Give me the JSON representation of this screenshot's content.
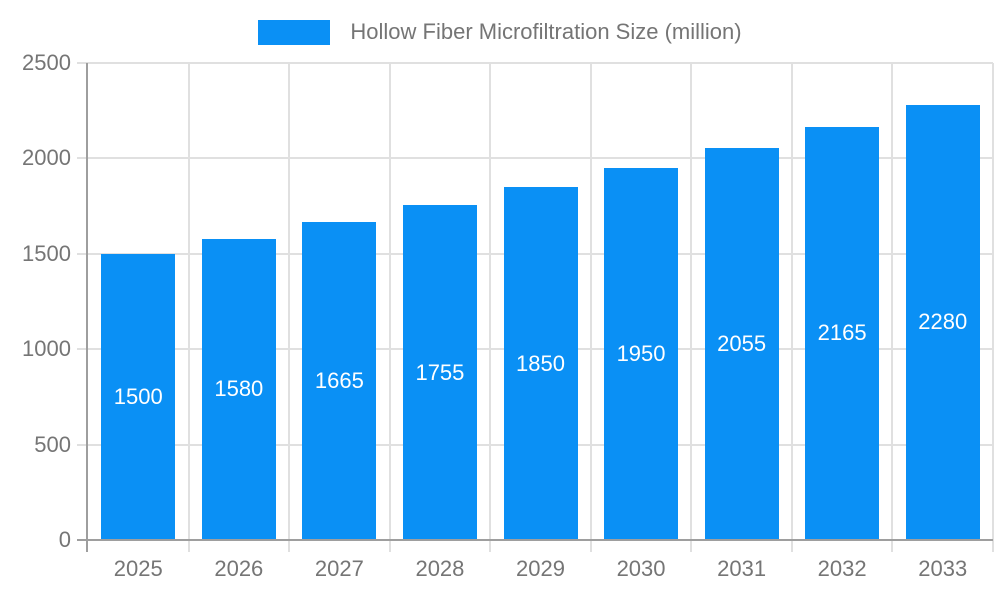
{
  "legend": {
    "label": "Hollow Fiber Microfiltration Size (million)"
  },
  "colors": {
    "bar": "#0a90f5",
    "grid": "#e0e0e0",
    "axis": "#9e9e9e",
    "axis_text": "#757575",
    "bar_label_text": "#ffffff",
    "background": "#ffffff"
  },
  "chart_data": {
    "type": "bar",
    "title": "Hollow Fiber Microfiltration Size (million)",
    "categories": [
      "2025",
      "2026",
      "2027",
      "2028",
      "2029",
      "2030",
      "2031",
      "2032",
      "2033"
    ],
    "values": [
      1500,
      1580,
      1665,
      1755,
      1850,
      1950,
      2055,
      2165,
      2280
    ],
    "bar_labels": [
      1500,
      1580,
      1665,
      1755,
      1850,
      1950,
      2055,
      2165,
      2280
    ],
    "xlabel": "",
    "ylabel": "",
    "ylim": [
      0,
      2500
    ],
    "yticks": [
      0,
      500,
      1000,
      1500,
      2000,
      2500
    ],
    "grid": true,
    "legend_position": "top-center",
    "bar_label_position": "inside-center"
  }
}
